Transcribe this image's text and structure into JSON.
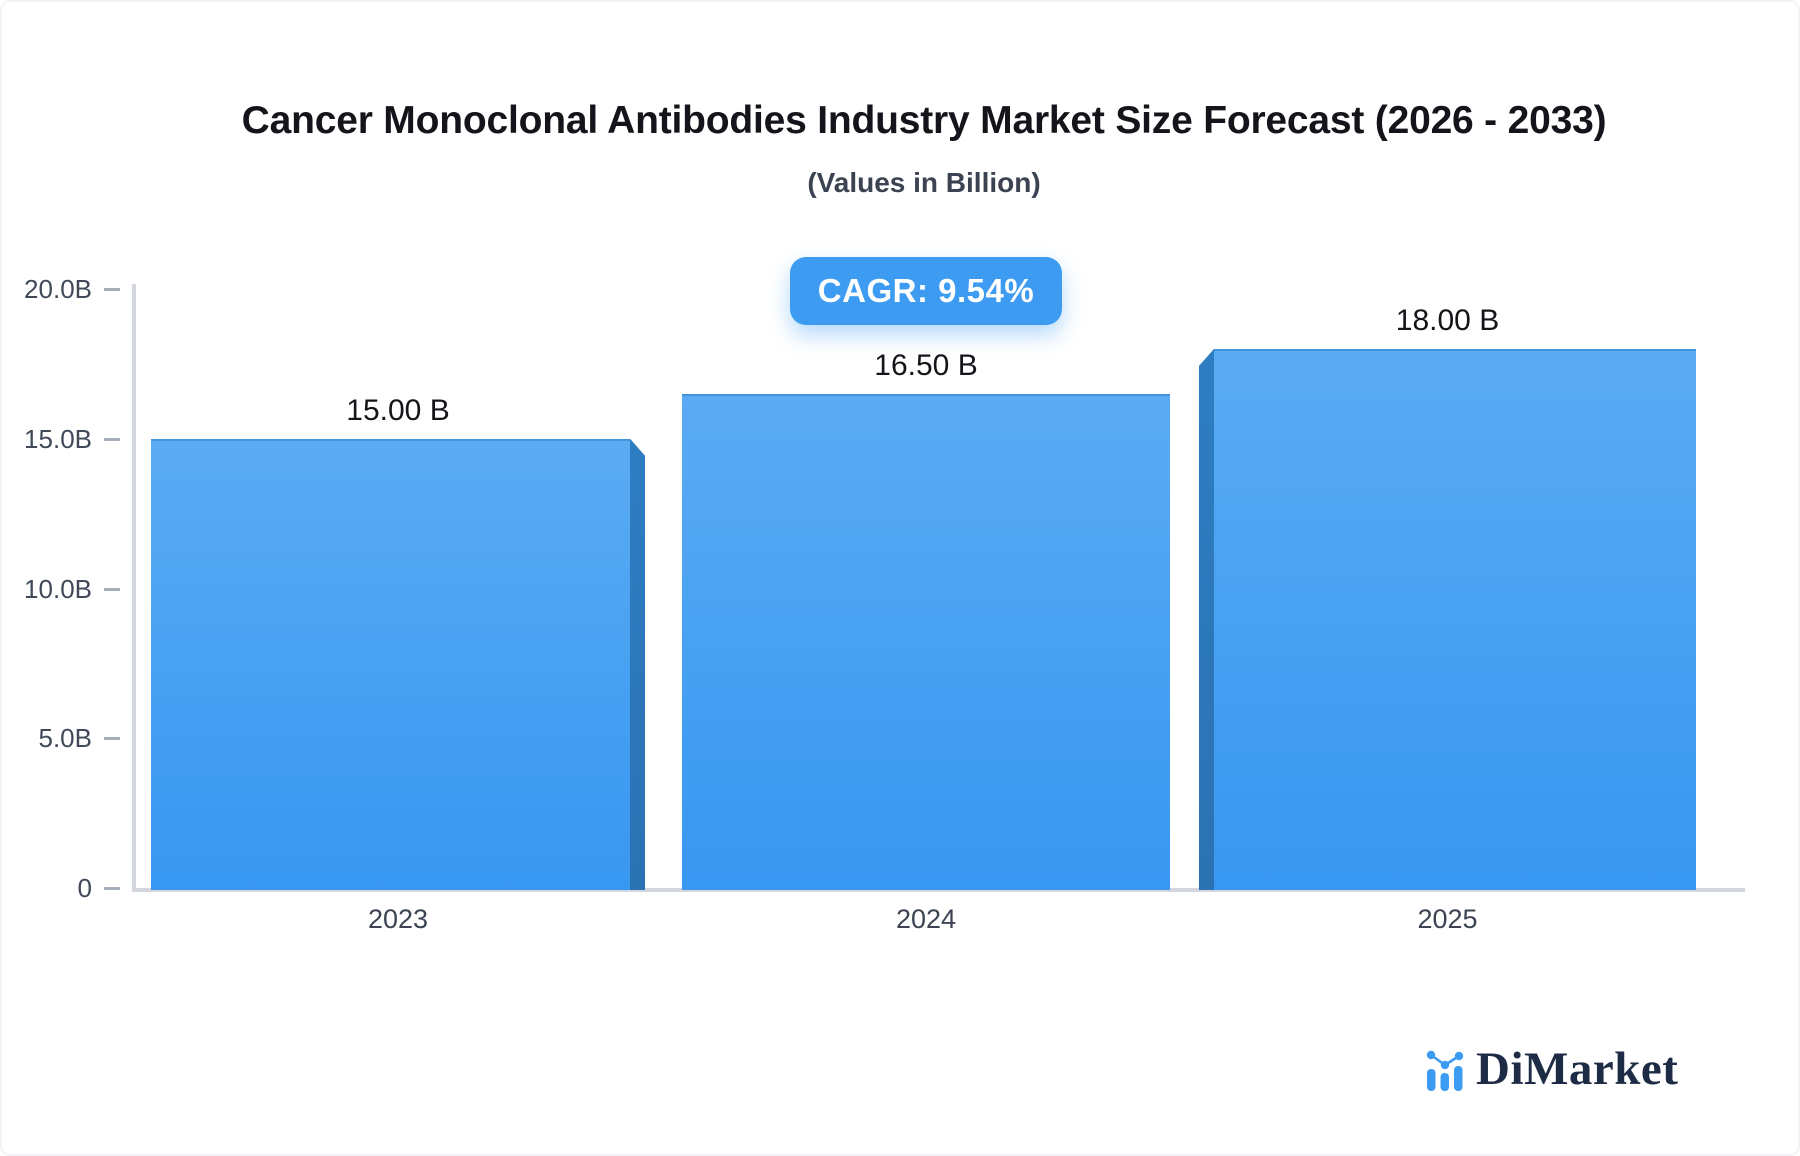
{
  "header": {
    "title": "Cancer Monoclonal Antibodies Industry Market Size Forecast (2026 - 2033)",
    "subtitle": "(Values in Billion)",
    "cagr_badge": "CAGR: 9.54%"
  },
  "chart_data": {
    "type": "bar",
    "title": "Cancer Monoclonal Antibodies Industry Market Size Forecast (2026 - 2033)",
    "subtitle": "(Values in Billion)",
    "cagr_percent": 9.54,
    "categories": [
      "2023",
      "2024",
      "2025"
    ],
    "values": [
      15.0,
      16.5,
      18.0
    ],
    "value_labels": [
      "15.00 B",
      "16.50 B",
      "18.00 B"
    ],
    "yticks": [
      {
        "label": "20.0B",
        "value": 20
      },
      {
        "label": "15.0B",
        "value": 15
      },
      {
        "label": "10.0B",
        "value": 10
      },
      {
        "label": "5.0B",
        "value": 5
      },
      {
        "label": "0",
        "value": 0
      }
    ],
    "ylim": [
      0,
      20
    ],
    "xlabel": "",
    "ylabel": "",
    "grid": false,
    "legend": false,
    "style": "3d-beveled-bars"
  },
  "colors": {
    "badge_bg": "#3d9cf2",
    "bar_top": "#5babf3",
    "bar_bottom": "#3897f1",
    "bar_side": "#2e7dc3",
    "axis": "#d3d6dc",
    "tick": "#a7aeba",
    "logo_blue": "#3c9cf3",
    "logo_navy": "#1d2b45"
  },
  "logo": {
    "text": "DiMarket"
  }
}
